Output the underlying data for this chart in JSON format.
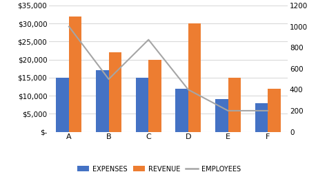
{
  "categories": [
    "A",
    "B",
    "C",
    "D",
    "E",
    "F"
  ],
  "expenses": [
    15000,
    17000,
    15000,
    12000,
    9000,
    8000
  ],
  "revenue": [
    32000,
    22000,
    20000,
    30000,
    15000,
    12000
  ],
  "employees": [
    1000,
    500,
    875,
    400,
    200,
    200
  ],
  "bar_color_expenses": "#4472C4",
  "bar_color_revenue": "#ED7D31",
  "line_color_employees": "#A5A5A5",
  "ylim_left": [
    0,
    35000
  ],
  "ylim_right": [
    0,
    1200
  ],
  "yticks_left": [
    0,
    5000,
    10000,
    15000,
    20000,
    25000,
    30000,
    35000
  ],
  "yticks_right": [
    0,
    200,
    400,
    600,
    800,
    1000,
    1200
  ],
  "legend_labels": [
    "EXPENSES",
    "REVENUE",
    "EMPLOYEES"
  ],
  "background_color": "#FFFFFF",
  "grid_color": "#D9D9D9",
  "bar_width": 0.32,
  "title": ""
}
